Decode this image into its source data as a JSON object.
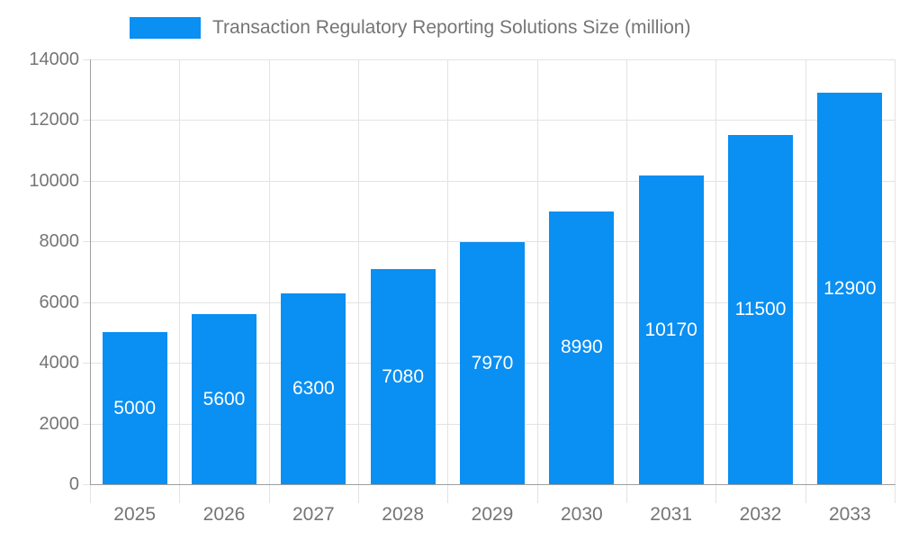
{
  "chart": {
    "background": "#ffffff",
    "legend": {
      "label": "Transaction Regulatory Reporting Solutions Size (million)",
      "swatch_color": "#0a8ff2"
    },
    "colors": {
      "bar": "#0a8ff2",
      "bar_label": "#ffffff",
      "grid": "#e3e3e3",
      "axis": "#9e9e9e",
      "tick": "#e3e3e3",
      "text": "#757575"
    }
  },
  "chart_data": {
    "type": "bar",
    "title": "Transaction Regulatory Reporting Solutions Size (million)",
    "categories": [
      "2025",
      "2026",
      "2027",
      "2028",
      "2029",
      "2030",
      "2031",
      "2032",
      "2033"
    ],
    "series": [
      {
        "name": "Transaction Regulatory Reporting Solutions Size (million)",
        "color": "#0a8ff2",
        "values": [
          5000,
          5600,
          6300,
          7080,
          7970,
          8990,
          10170,
          11500,
          12900
        ]
      }
    ],
    "bar_labels": [
      5000,
      5600,
      6300,
      7080,
      7970,
      8990,
      10170,
      11500,
      12900
    ],
    "bar_label_position": "center",
    "bar_label_color": "#ffffff",
    "xlabel": "",
    "ylabel": "",
    "ylim": [
      0,
      14000
    ],
    "yticks": [
      0,
      2000,
      4000,
      6000,
      8000,
      10000,
      12000,
      14000
    ],
    "grid": true,
    "legend_position": "top"
  }
}
